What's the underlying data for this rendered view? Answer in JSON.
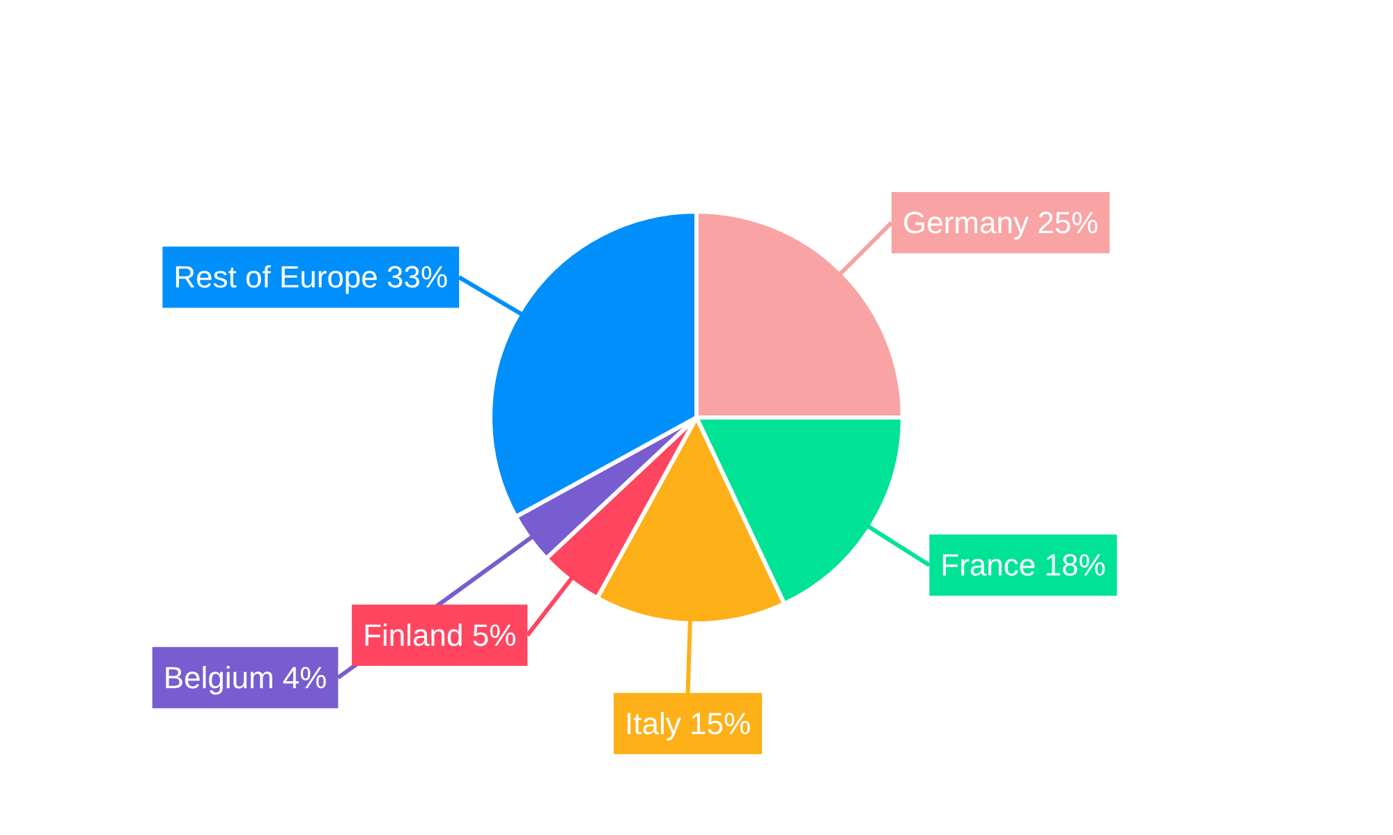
{
  "chart_data": {
    "type": "pie",
    "categories": [
      "Germany",
      "France",
      "Italy",
      "Finland",
      "Belgium",
      "Rest of Europe"
    ],
    "values": [
      25,
      18,
      15,
      5,
      4,
      33
    ],
    "colors": [
      "#f9a3a4",
      "#00e396",
      "#feb019",
      "#ff4560",
      "#775dd0",
      "#008ffb"
    ],
    "value_labels": [
      "25%",
      "18%",
      "15%",
      "5%",
      "4%",
      "33%"
    ]
  }
}
